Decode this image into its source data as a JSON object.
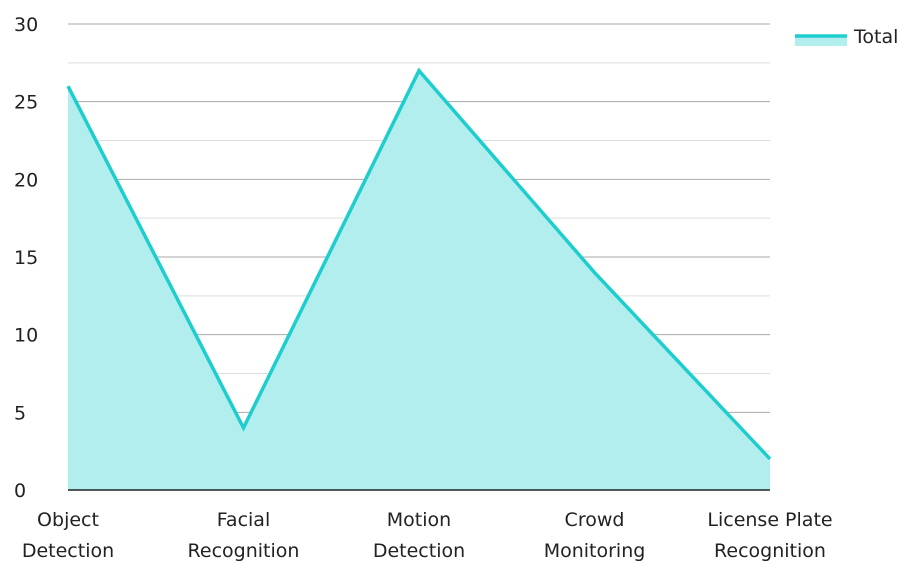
{
  "chart_data": {
    "type": "area",
    "categories": [
      "Object Detection",
      "Facial Recognition",
      "Motion Detection",
      "Crowd Monitoring",
      "License Plate Recognition"
    ],
    "category_lines": [
      [
        "Object",
        "Detection"
      ],
      [
        "Facial",
        "Recognition"
      ],
      [
        "Motion",
        "Detection"
      ],
      [
        "Crowd",
        "Monitoring"
      ],
      [
        "License Plate",
        "Recognition"
      ]
    ],
    "series": [
      {
        "name": "Total",
        "values": [
          26,
          4,
          27,
          14,
          2
        ]
      }
    ],
    "ylim": [
      0,
      30
    ],
    "y_ticks": [
      "0",
      "5",
      "10",
      "15",
      "20",
      "25",
      "30"
    ],
    "grid": true,
    "legend_position": "top-right",
    "colors": {
      "line": "#1ecdcd",
      "fill": "#b2eeee",
      "grid": "#bbbbbb",
      "axis": "#222222"
    }
  }
}
